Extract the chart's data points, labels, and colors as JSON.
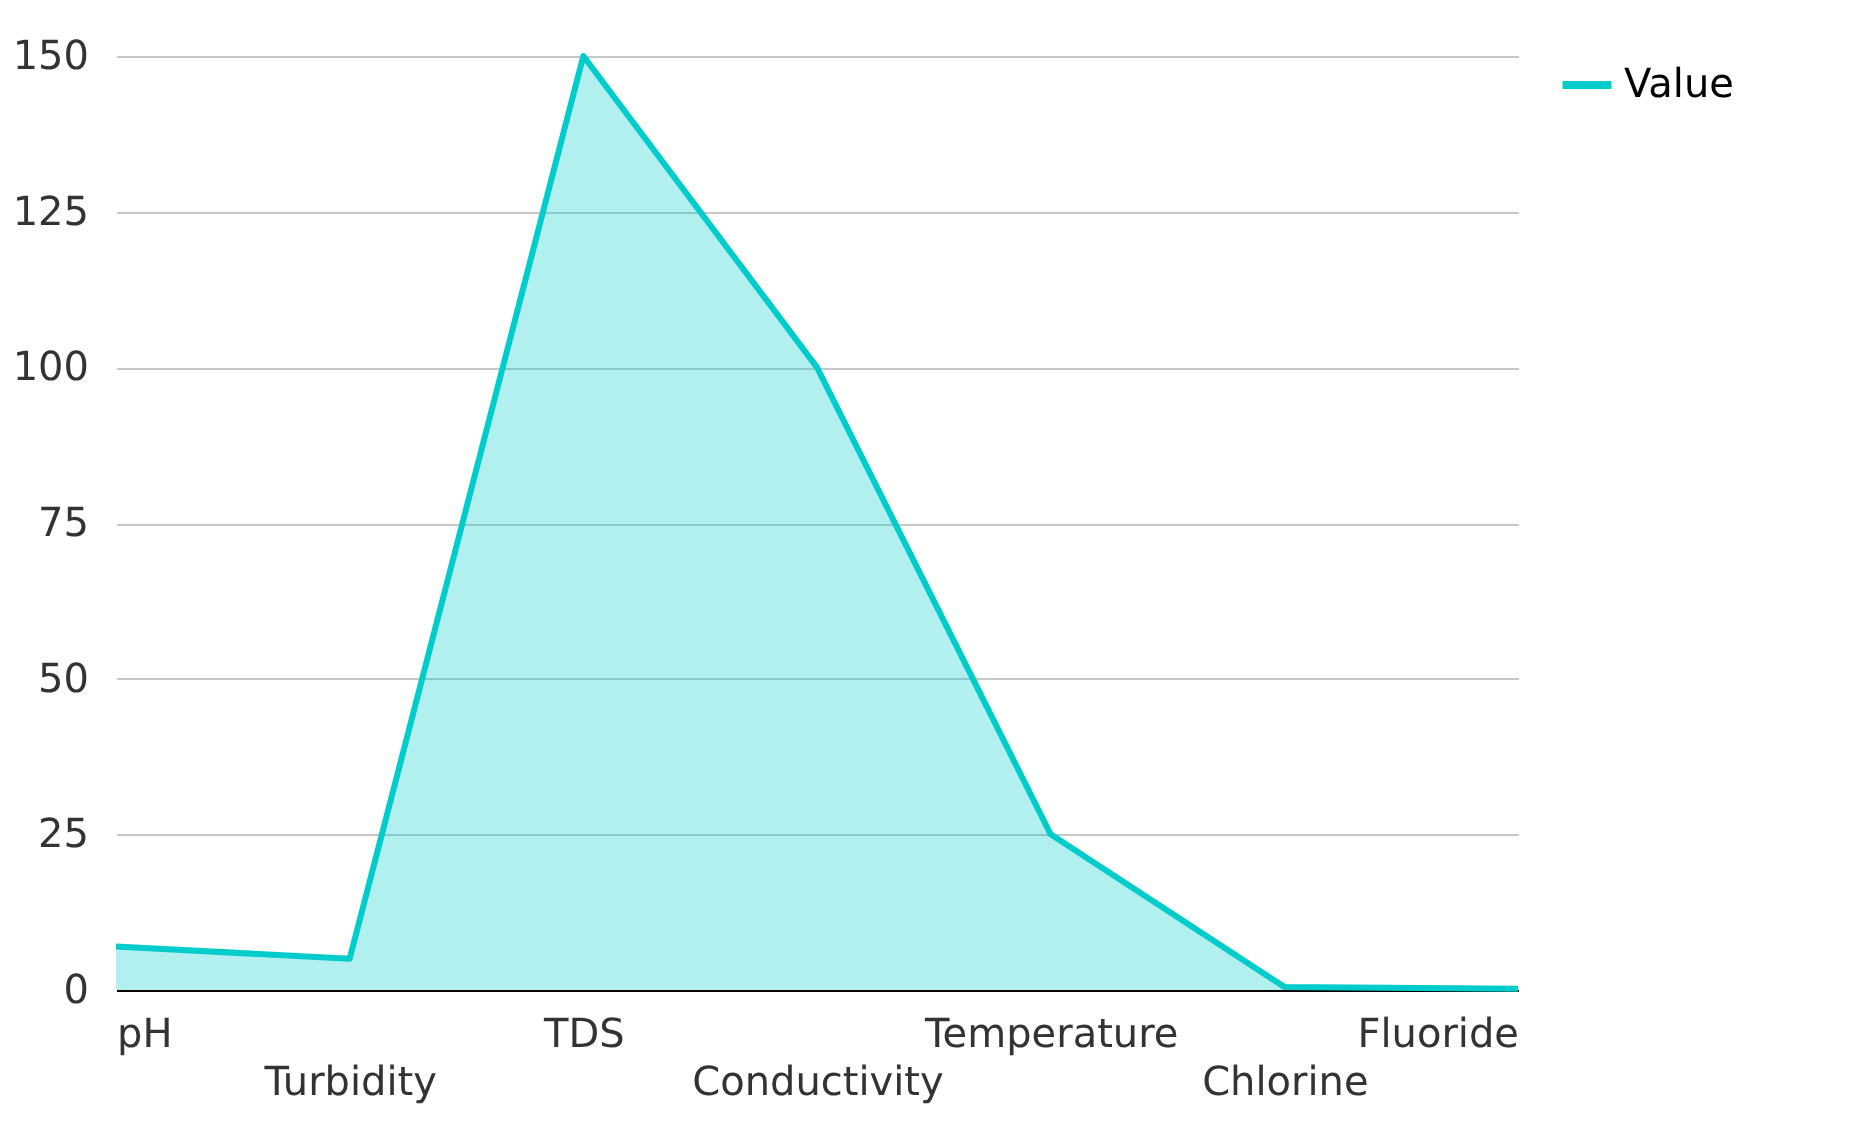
{
  "chart_data": {
    "type": "area",
    "categories": [
      "pH",
      "Turbidity",
      "TDS",
      "Conductivity",
      "Temperature",
      "Chlorine",
      "Fluoride"
    ],
    "series": [
      {
        "name": "Value",
        "color": "#00cccc",
        "values": [
          7,
          5,
          150,
          100,
          25,
          0.5,
          0.2
        ]
      }
    ],
    "ylim": [
      0,
      150
    ],
    "yticks": [
      0,
      25,
      50,
      75,
      100,
      125,
      150
    ],
    "grid": "y",
    "legend": "top right"
  }
}
